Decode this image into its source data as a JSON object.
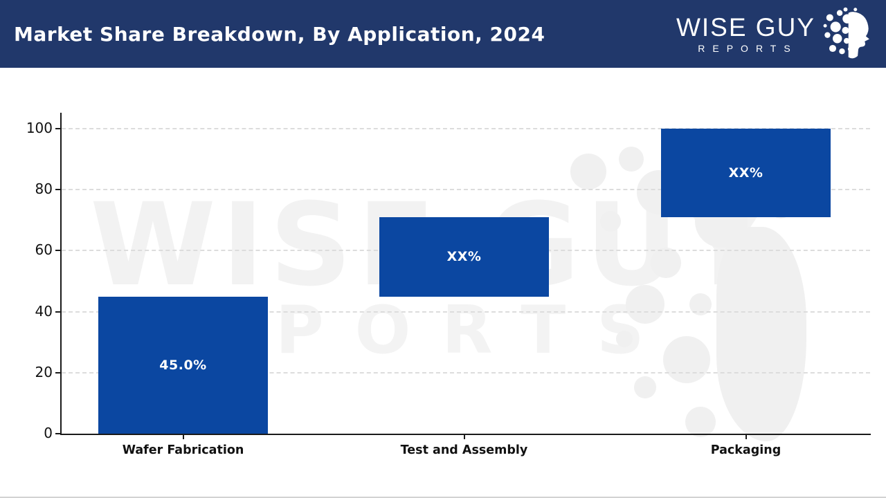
{
  "header": {
    "title": "Market Share Breakdown, By Application, 2024",
    "logo": {
      "line1": "WISE GUY",
      "line2": "REPORTS"
    }
  },
  "watermark": {
    "line1": "WISE GUY",
    "line2": "REPORTS"
  },
  "chart_data": {
    "type": "bar",
    "subtype": "floating-waterfall",
    "title": "Market Share Breakdown, By Application, 2024",
    "categories": [
      "Wafer Fabrication",
      "Test and Assembly",
      "Packaging"
    ],
    "bars": [
      {
        "category": "Wafer Fabrication",
        "start": 0,
        "end": 45,
        "label": "45.0%"
      },
      {
        "category": "Test and Assembly",
        "start": 45,
        "end": 71,
        "label": "XX%"
      },
      {
        "category": "Packaging",
        "start": 71,
        "end": 100,
        "label": "XX%"
      }
    ],
    "yticks": [
      0,
      20,
      40,
      60,
      80,
      100
    ],
    "ylim": [
      0,
      105
    ],
    "xlabel": "",
    "ylabel": "",
    "legend": false,
    "grid": "horizontal-dashed",
    "colors": {
      "bar": "#0b47a1",
      "header_bg": "#21386b",
      "grid": "#dcdcdc",
      "axis": "#1a1a1a",
      "bar_label": "#ffffff",
      "watermark": "#f2f2f2"
    }
  }
}
